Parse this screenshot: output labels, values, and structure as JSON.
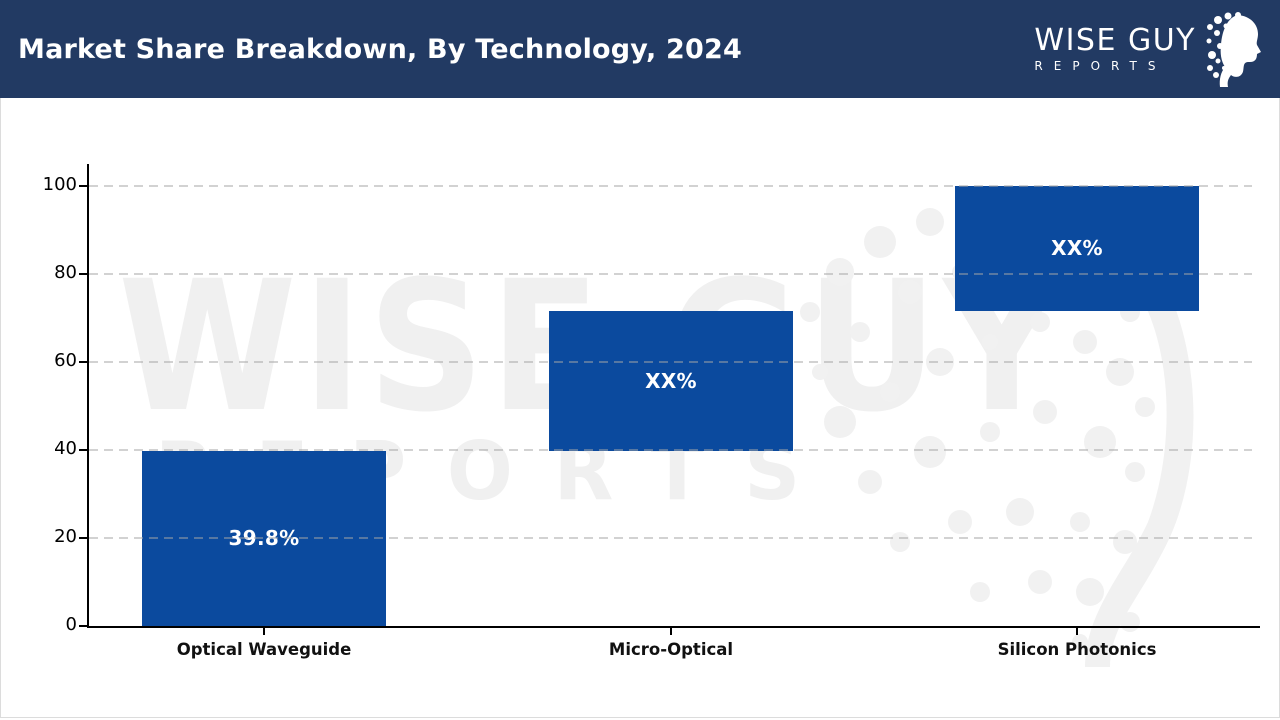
{
  "header": {
    "title": "Market Share Breakdown, By Technology, 2024"
  },
  "logo": {
    "line1": "WISE GUY",
    "line2": "REPORTS"
  },
  "watermark": {
    "line1": "WISE GUY",
    "line2": "REPORTS"
  },
  "colors": {
    "header_bg": "#223a63",
    "body_bg": "#ffffff",
    "frame_border": "#dcdcdc",
    "bar_blue": "#0b4a9e"
  },
  "chart_data": {
    "type": "bar",
    "variant": "floating-segment-waterfall",
    "title": "Market Share Breakdown, By Technology, 2024",
    "categories": [
      "Optical Waveguide",
      "Micro-Optical",
      "Silicon Photonics"
    ],
    "segments": [
      {
        "category": "Optical Waveguide",
        "start": 0,
        "end": 39.8,
        "value": 39.8,
        "label": "39.8%"
      },
      {
        "category": "Micro-Optical",
        "start": 39.8,
        "end": 71.6,
        "value": 31.8,
        "label": "XX%"
      },
      {
        "category": "Silicon Photonics",
        "start": 71.6,
        "end": 100,
        "value": 28.4,
        "label": "XX%"
      }
    ],
    "yticks": [
      0,
      20,
      40,
      60,
      80,
      100
    ],
    "ylim": [
      0,
      105
    ],
    "xlabel": "",
    "ylabel": "",
    "grid": "dashed-horizontal-over-bars",
    "legend": "none",
    "bar_color": "#0b4a9e",
    "bar_label_color": "#ffffff",
    "axis_color": "#000000",
    "gridline_color": "#d9d9d9"
  }
}
